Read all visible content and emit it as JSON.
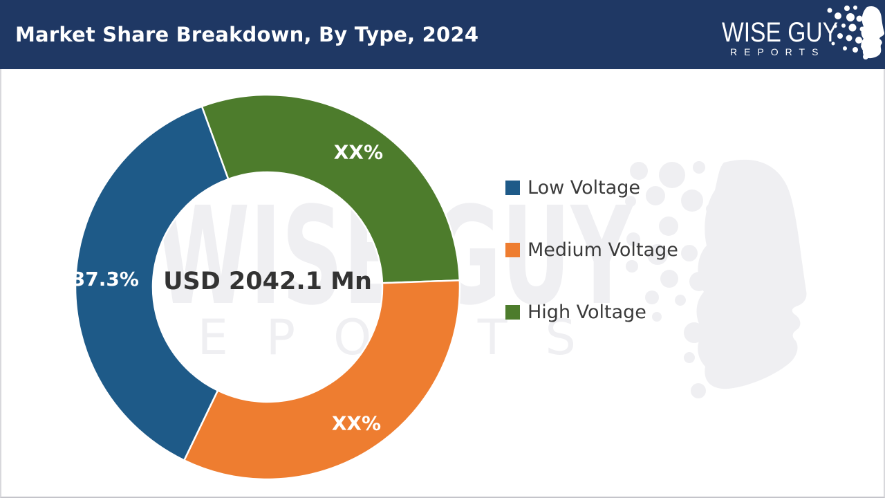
{
  "header": {
    "title": "Market Share Breakdown, By Type, 2024",
    "background_color": "#1F3864"
  },
  "logo": {
    "brand": "WISE GUY",
    "sub": "REPORTS"
  },
  "watermark": {
    "line1": "WISE GUY",
    "line2": "REPORTS"
  },
  "chart_data": {
    "type": "donut",
    "title": "Market Share Breakdown, By Type, 2024",
    "center_label": "USD 2042.1 Mn",
    "unit": "percent",
    "start_angle_deg": 110,
    "direction": "counterclockwise",
    "legend_position": "right",
    "slices": [
      {
        "label": "Low Voltage",
        "value": 37.3,
        "display_value": "37.3%",
        "color": "#1E5A88"
      },
      {
        "label": "Medium Voltage",
        "value": 32.7,
        "display_value": "XX%",
        "color": "#EE7D30"
      },
      {
        "label": "High Voltage",
        "value": 30.0,
        "display_value": "XX%",
        "color": "#4D7C2C"
      }
    ]
  }
}
